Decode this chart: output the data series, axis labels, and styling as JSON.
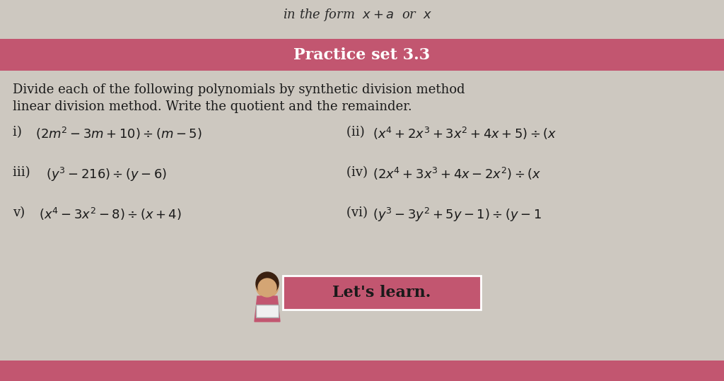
{
  "bg_color": "#cdc8c0",
  "top_text": "in the form  $x + a$  or  $x$",
  "banner_color": "#c25670",
  "banner_text": "Practice set 3.3",
  "banner_text_color": "#ffffff",
  "instruction_line1": "Divide each of the following polynomials by synthetic division method",
  "instruction_line2": "linear division method. Write the quotient and the remainder.",
  "row1_left_label": "i) ",
  "row1_left_expr": "$(2m^2 - 3m + 10) \\div (m - 5)$",
  "row1_right_label": "(ii) ",
  "row1_right_expr": "$(x^4 + 2x^3 + 3x^2 + 4x + 5) \\div (x$",
  "row2_left_label": "iii) ",
  "row2_left_expr": "$(y^3 - 216) \\div (y - 6)$",
  "row2_right_label": "(iv) ",
  "row2_right_expr": "$(2x^4 + 3x^3 + 4x - 2x^2) \\div (x$",
  "row3_left_label": "v)  ",
  "row3_left_expr": "$(x^4 - 3x^2 - 8) \\div (x + 4)$",
  "row3_right_label": "(vi) ",
  "row3_right_expr": "$(y^3 - 3y^2 + 5y - 1) \\div (y - 1$",
  "lets_learn_text": "Let's learn.",
  "lets_learn_bg": "#c25670",
  "lets_learn_text_color": "#1a1a1a",
  "bottom_strip_color": "#c25670",
  "font_size_banner": 16,
  "font_size_body": 13,
  "font_size_lets": 16
}
